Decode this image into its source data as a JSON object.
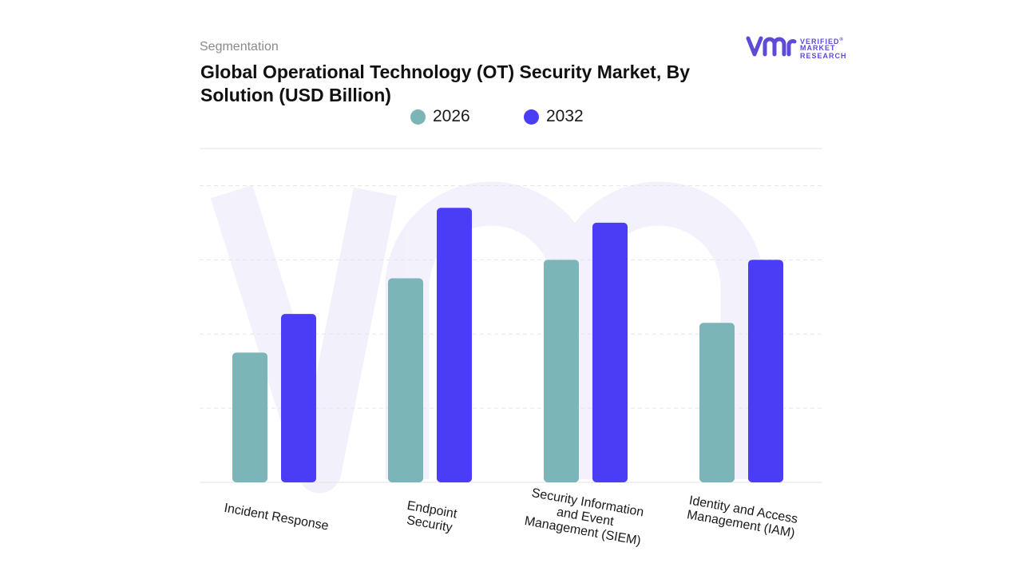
{
  "header": {
    "segment_label": "Segmentation",
    "title": "Global Operational Technology (OT) Security Market, By Solution (USD Billion)"
  },
  "logo": {
    "mark": "vmr",
    "words": [
      "VERIFIED",
      "MARKET",
      "RESEARCH"
    ],
    "registered": "®"
  },
  "colors": {
    "series_2026": "#7cb5b8",
    "series_2032": "#4b3cf5",
    "brand": "#5b4bd6"
  },
  "chart_data": {
    "type": "bar",
    "title": "Global Operational Technology (OT) Security Market, By Solution (USD Billion)",
    "categories": [
      "Incident Response",
      "Endpoint Security",
      "Security Information and Event Management (SIEM)",
      "Identity and Access Management (IAM)"
    ],
    "category_lines": [
      [
        "Incident Response"
      ],
      [
        "Endpoint",
        "Security"
      ],
      [
        "Security Information",
        "and Event",
        "Management (SIEM)"
      ],
      [
        "Identity and Access",
        "Management (IAM)"
      ]
    ],
    "series": [
      {
        "name": "2026",
        "values": [
          1.75,
          2.75,
          3.0,
          2.15
        ]
      },
      {
        "name": "2032",
        "values": [
          2.27,
          3.7,
          3.5,
          3.0
        ]
      }
    ],
    "ylim": [
      0,
      4.5
    ],
    "grid": true,
    "legend": "top-center",
    "y_axis_labels_shown": false
  }
}
